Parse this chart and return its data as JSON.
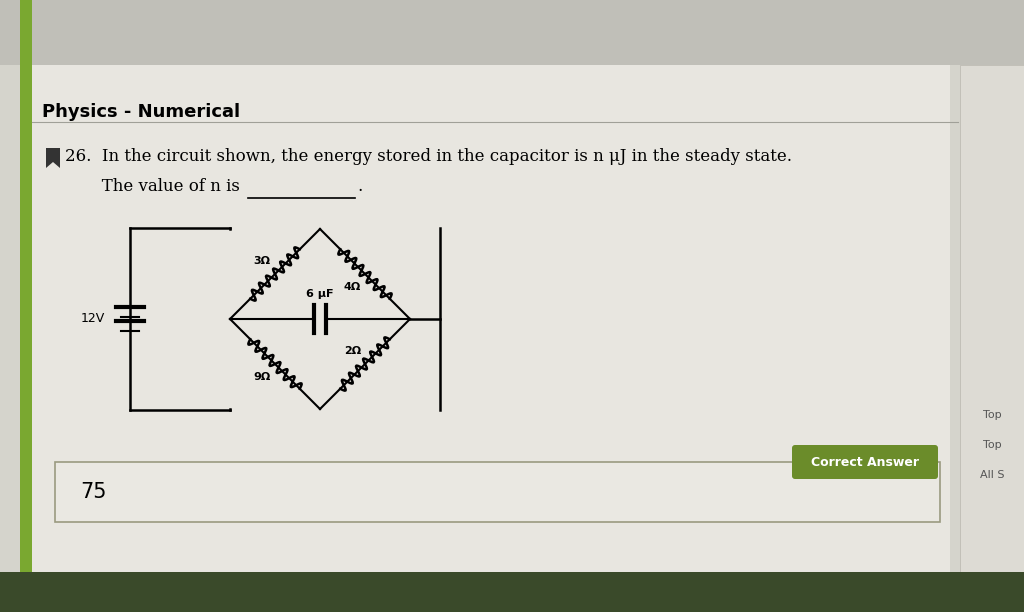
{
  "bg_color": "#d5d4cc",
  "content_bg": "#e8e6e0",
  "title_text": "Physics - Numerical",
  "q_line1": "26.  In the circuit shown, the energy stored in the capacitor is n μJ in the steady state.",
  "q_line2": "       The value of n is",
  "answer_text": "75",
  "correct_answer_label": "Correct Answer",
  "battery_voltage": "12V",
  "resistor_labels": [
    "3Ω",
    "4Ω",
    "9Ω",
    "2Ω"
  ],
  "capacitor_label": "6 μF",
  "correct_answer_bg": "#6b8c2a",
  "answer_box_bg": "#eae8e2",
  "answer_box_border": "#9a9a80",
  "green_bar_color": "#7aa830",
  "gray_bar_color": "#c0bfb8",
  "right_panel_bg": "#dddbd4",
  "right_panel_border": "#b8b6ae"
}
